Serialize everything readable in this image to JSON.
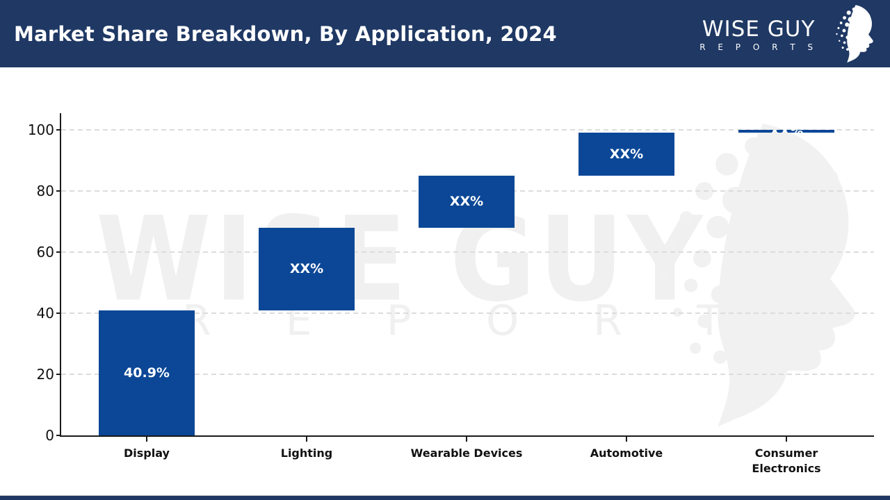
{
  "header": {
    "title": "Market Share Breakdown, By Application, 2024",
    "logo": {
      "line1": "WISE GUY",
      "line2": "R E P O R T S"
    },
    "bg_color": "#1f3864"
  },
  "watermark": {
    "line1": "WISE GUY",
    "line2": "R E P O R T S"
  },
  "chart_data": {
    "type": "bar",
    "subtype": "waterfall",
    "title": "Market Share Breakdown, By Application, 2024",
    "categories": [
      "Display",
      "Lighting",
      "Wearable Devices",
      "Automotive",
      "Consumer Electronics"
    ],
    "segments": [
      {
        "category": "Display",
        "start": 0,
        "end": 40.9,
        "label": "40.9%"
      },
      {
        "category": "Lighting",
        "start": 40.9,
        "end": 68,
        "label": "XX%"
      },
      {
        "category": "Wearable Devices",
        "start": 68,
        "end": 85,
        "label": "XX%"
      },
      {
        "category": "Automotive",
        "start": 85,
        "end": 99,
        "label": "XX%"
      },
      {
        "category": "Consumer Electronics",
        "start": 99,
        "end": 100,
        "label": "XX%"
      }
    ],
    "yticks": [
      0,
      20,
      40,
      60,
      80,
      100
    ],
    "ylim": [
      0,
      105
    ],
    "xlabel": "",
    "ylabel": "",
    "bar_color": "#0b4796",
    "grid": "dashed-horizontal",
    "legend": "none"
  }
}
